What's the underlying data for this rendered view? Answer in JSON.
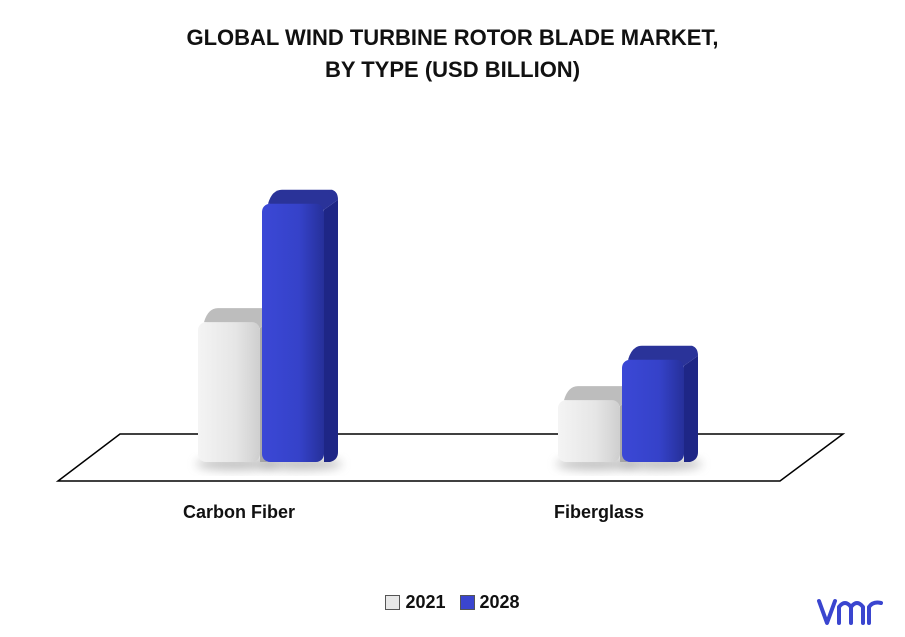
{
  "chart_data": {
    "type": "bar",
    "title_lines": [
      "GLOBAL WIND TURBINE ROTOR BLADE MARKET,",
      "BY TYPE (USD BILLION)"
    ],
    "categories": [
      "Carbon Fiber",
      "Fiberglass"
    ],
    "series": [
      {
        "name": "2021",
        "values": [
          5.2,
          2.3
        ],
        "color": "#e8e8e8"
      },
      {
        "name": "2028",
        "values": [
          9.6,
          3.8
        ],
        "color": "#3a45cf"
      }
    ],
    "ylim": [
      0,
      10.5
    ],
    "grid": false,
    "legend_position": "bottom-center"
  },
  "logo": {
    "text": "vmr",
    "color": "#3a45cf"
  }
}
